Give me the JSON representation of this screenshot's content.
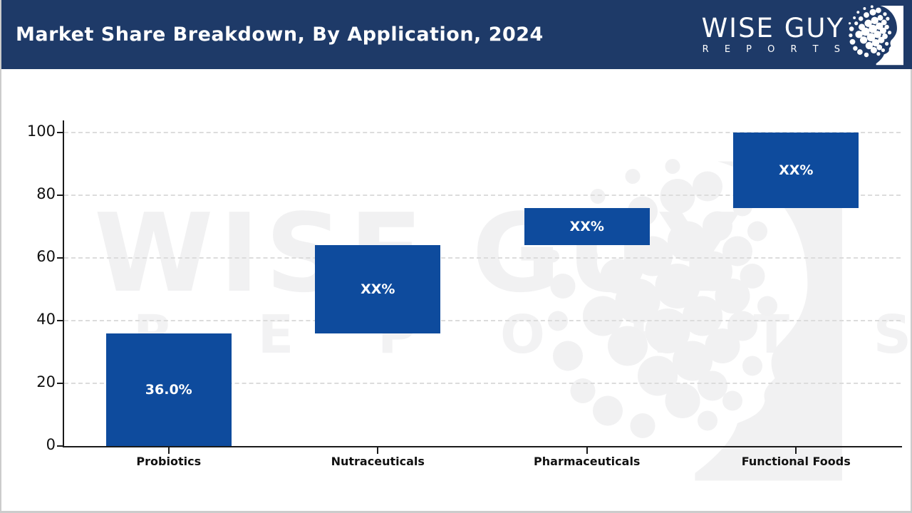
{
  "header": {
    "title": "Market Share Breakdown, By Application, 2024",
    "bg_color": "#1e3a68",
    "logo": {
      "line1": "WISE GUY",
      "line2": "R E P O R T S",
      "icon": "dotted-head-profile-icon"
    }
  },
  "watermark": {
    "line1": "WISE GUY",
    "line2": "R E P O R T S",
    "icon": "dotted-head-profile-icon",
    "color": "#f1f1f2"
  },
  "chart_data": {
    "type": "bar",
    "subtype": "waterfall",
    "title": "Market Share Breakdown, By Application, 2024",
    "categories": [
      "Probiotics",
      "Nutraceuticals",
      "Pharmaceuticals",
      "Functional Foods"
    ],
    "series": [
      {
        "name": "Market Share %",
        "segment_start": [
          0,
          36,
          64,
          76
        ],
        "segment_end": [
          36,
          64,
          76,
          100
        ],
        "values": [
          36,
          28,
          12,
          24
        ]
      }
    ],
    "bar_labels": [
      "36.0%",
      "XX%",
      "XX%",
      "XX%"
    ],
    "xlabel": "",
    "ylabel": "",
    "ylim": [
      0,
      100
    ],
    "yticks": [
      0,
      20,
      40,
      60,
      80,
      100
    ],
    "grid": "horizontal-dashed",
    "legend": "none",
    "bar_color": "#0e4b9d",
    "bar_label_color": "#ffffff",
    "axis_color": "#1a1a1a",
    "gridline_color": "#dcdcdc"
  }
}
